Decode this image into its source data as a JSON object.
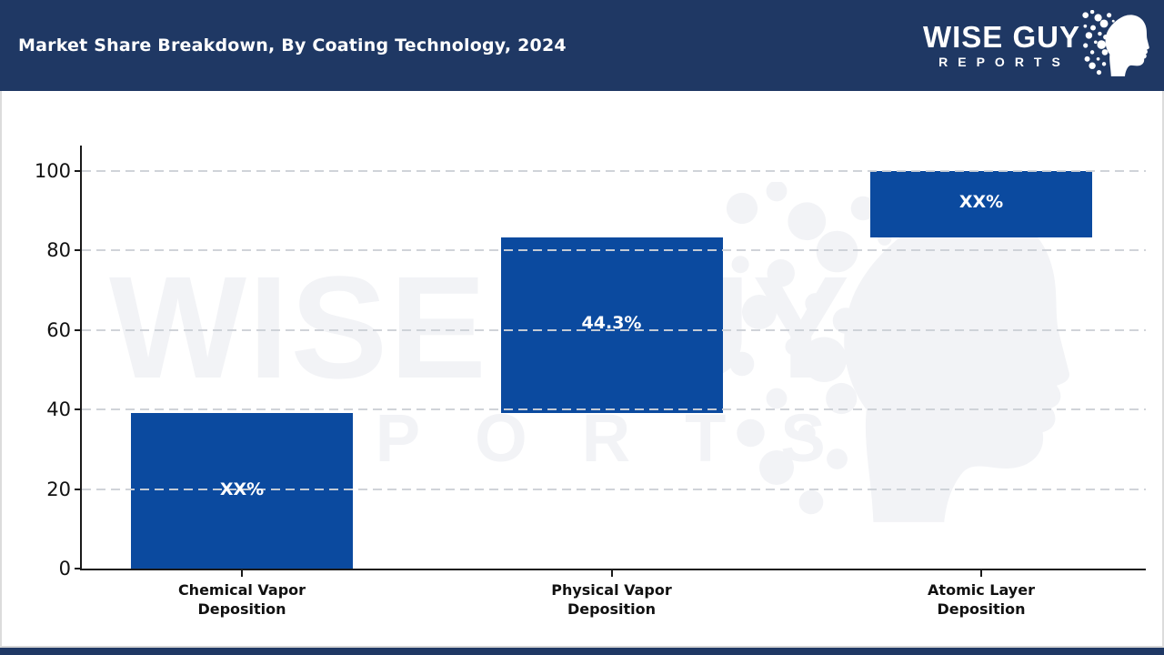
{
  "header": {
    "title": "Market Share Breakdown, By Coating Technology, 2024",
    "logo": {
      "line1": "WISE GUY",
      "line2": "REPORTS"
    }
  },
  "watermark": {
    "line1": "WISE GUY",
    "line2": "REPORTS"
  },
  "colors": {
    "header_bg": "#1F3864",
    "footer_bg": "#1F3864",
    "bar": "#0B4A9F",
    "gridline": "#D9D9D9",
    "axis_text": "#1A1A1A",
    "watermark": "#F2F3F6",
    "bar_label_text": "#FFFFFF"
  },
  "chart_data": {
    "type": "bar",
    "subtype": "waterfall",
    "title": "Market Share Breakdown, By Coating Technology, 2024",
    "categories": [
      "Chemical Vapor Deposition",
      "Physical Vapor Deposition",
      "Atomic Layer Deposition"
    ],
    "category_lines": [
      [
        "Chemical Vapor",
        "Deposition"
      ],
      [
        "Physical Vapor",
        "Deposition"
      ],
      [
        "Atomic Layer",
        "Deposition"
      ]
    ],
    "segments": [
      {
        "category": "Chemical Vapor Deposition",
        "label": "XX%",
        "start": 0,
        "end": 39
      },
      {
        "category": "Physical Vapor Deposition",
        "label": "44.3%",
        "start": 39,
        "end": 83.3
      },
      {
        "category": "Atomic Layer Deposition",
        "label": "XX%",
        "start": 83.3,
        "end": 100
      }
    ],
    "yticks": [
      0,
      20,
      40,
      60,
      80,
      100
    ],
    "ylim": [
      0,
      100
    ],
    "xlabel": "",
    "ylabel": "",
    "grid": "horizontal-dashed",
    "legend": "none"
  }
}
